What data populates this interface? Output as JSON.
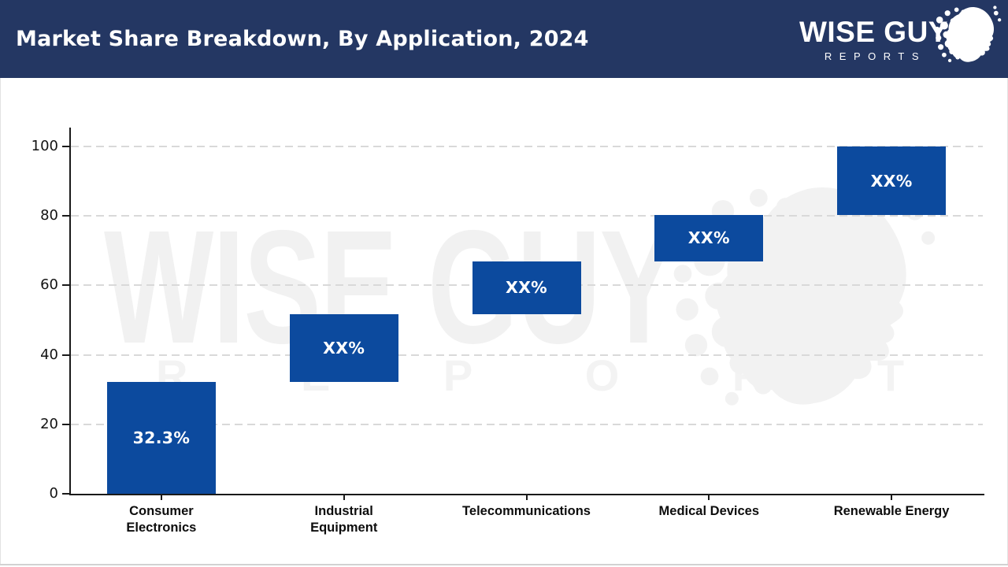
{
  "header": {
    "title": "Market Share Breakdown, By Application, 2024",
    "brand": {
      "line1": "WISE GUY",
      "line2": "REPORTS"
    },
    "bg_color": "#243763"
  },
  "watermark": {
    "line1": "WISE GUY",
    "line2": "R E P O R T S"
  },
  "chart_data": {
    "type": "bar",
    "subtype": "waterfall-stacked-breakdown",
    "title": "Market Share Breakdown, By Application, 2024",
    "categories": [
      "Consumer Electronics",
      "Industrial Equipment",
      "Telecommunications",
      "Medical Devices",
      "Renewable Energy"
    ],
    "segments": [
      {
        "category": "Consumer Electronics",
        "tick_label": "Consumer\nElectronics",
        "start": 0,
        "end": 32.3,
        "label": "32.3%"
      },
      {
        "category": "Industrial Equipment",
        "tick_label": "Industrial\nEquipment",
        "start": 32.3,
        "end": 51.8,
        "label": "XX%"
      },
      {
        "category": "Telecommunications",
        "tick_label": "Telecommunications",
        "start": 51.8,
        "end": 67.0,
        "label": "XX%"
      },
      {
        "category": "Medical Devices",
        "tick_label": "Medical Devices",
        "start": 67.0,
        "end": 80.2,
        "label": "XX%"
      },
      {
        "category": "Renewable Energy",
        "tick_label": "Renewable Energy",
        "start": 80.2,
        "end": 100,
        "label": "XX%"
      }
    ],
    "xlabel": "",
    "ylabel": "",
    "ylim": [
      0,
      100
    ],
    "yticks": [
      "0",
      "20",
      "40",
      "60",
      "80",
      "100"
    ],
    "grid": "horizontal dashed",
    "legend": "none",
    "bar_color": "#0c4a9e",
    "value_label_color": "#ffffff",
    "note": "values above first segment are masked as XX% in source image"
  }
}
